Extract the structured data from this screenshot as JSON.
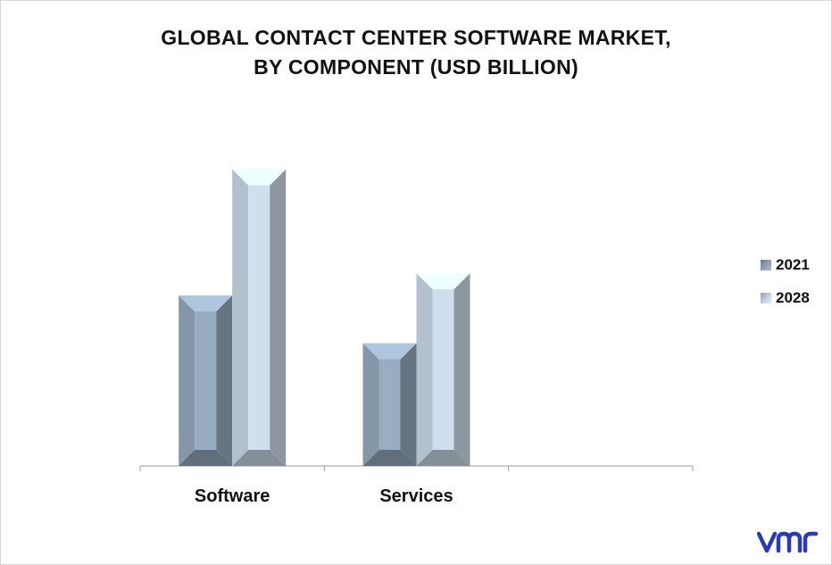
{
  "chart_data": {
    "type": "bar",
    "title_lines": [
      "GLOBAL CONTACT CENTER SOFTWARE MARKET,",
      "BY COMPONENT (USD BILLION)"
    ],
    "categories": [
      "Software",
      "Services",
      ""
    ],
    "series": [
      {
        "name": "2021",
        "values": [
          1.0,
          0.72,
          null
        ],
        "color": "#8fa3b6"
      },
      {
        "name": "2028",
        "values": [
          1.74,
          1.13,
          null
        ],
        "color": "#c3d2e0"
      }
    ],
    "ylim": [
      0,
      2.0
    ],
    "grid": false,
    "legend": "right"
  },
  "legend": {
    "items": [
      {
        "label": "2021",
        "color": "#8fa3b6"
      },
      {
        "label": "2028",
        "color": "#c3d2e0"
      }
    ]
  },
  "logo": {
    "text": "vmr",
    "color": "#2b3bb5"
  }
}
